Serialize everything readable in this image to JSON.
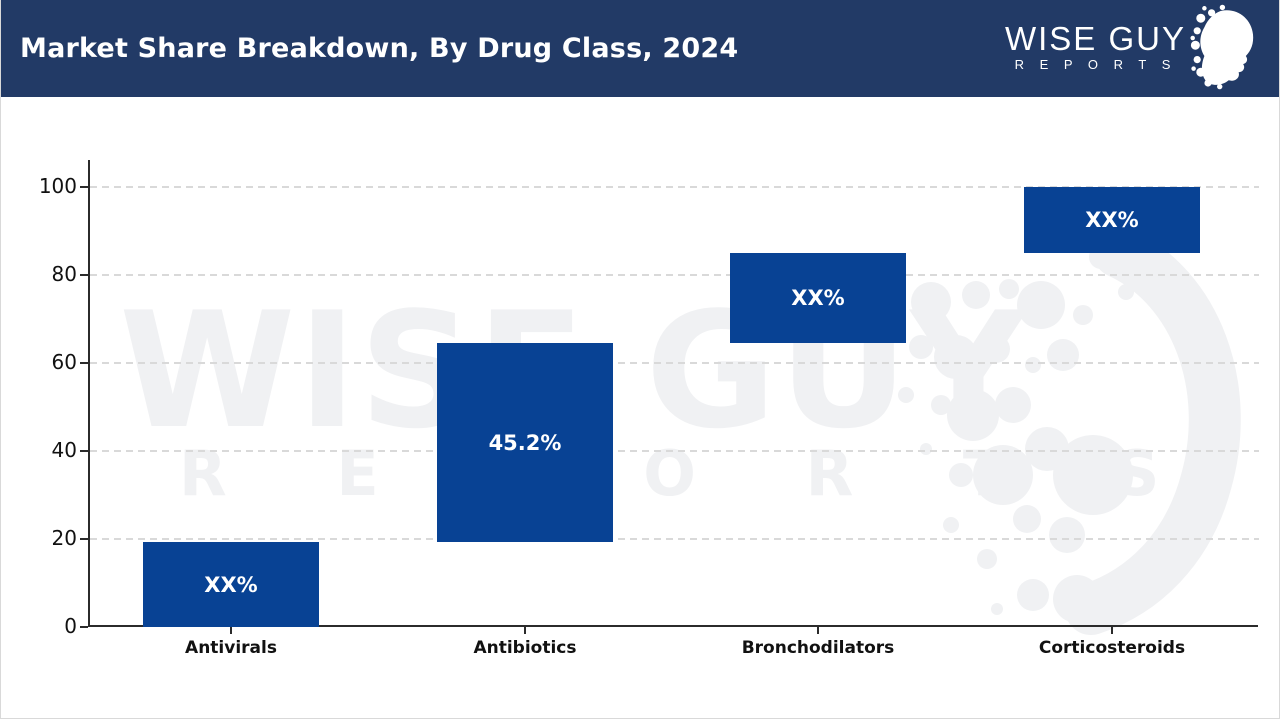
{
  "header": {
    "title": "Market Share Breakdown, By Drug Class, 2024",
    "logo": {
      "name_line": "WISE GUY",
      "sub_line": "R E P O R T S"
    }
  },
  "watermark": {
    "name_line": "WISE GUY",
    "sub_line": "R E P O R T S"
  },
  "colors": {
    "header_bg": "#223a66",
    "title_text": "#ffffff",
    "bar_fill": "#084294",
    "bar_label_text": "#ffffff",
    "axis_line": "#2b2b2b",
    "grid_line": "#d9d9d9",
    "tick_text": "#111111",
    "watermark": "#f0f1f3",
    "frame_border": "#d9d9d9"
  },
  "chart_data": {
    "type": "bar",
    "subtype": "floating-waterfall",
    "title": "Market Share Breakdown, By Drug Class, 2024",
    "categories": [
      "Antivirals",
      "Antibiotics",
      "Bronchodilators",
      "Corticosteroids"
    ],
    "series": [
      {
        "name": "Market share (%)",
        "segments": [
          {
            "category": "Antivirals",
            "start": 0,
            "end": 19.3,
            "value": 19.3,
            "label": "XX%"
          },
          {
            "category": "Antibiotics",
            "start": 19.3,
            "end": 64.5,
            "value": 45.2,
            "label": "45.2%"
          },
          {
            "category": "Bronchodilators",
            "start": 64.5,
            "end": 85,
            "value": 20.5,
            "label": "XX%"
          },
          {
            "category": "Corticosteroids",
            "start": 85,
            "end": 100,
            "value": 15,
            "label": "XX%"
          }
        ]
      }
    ],
    "xlabel": "",
    "ylabel": "",
    "yticks": [
      0,
      20,
      40,
      60,
      80,
      100
    ],
    "ylim": [
      0,
      105
    ],
    "grid": "horizontal-dashed",
    "legend": "none"
  }
}
